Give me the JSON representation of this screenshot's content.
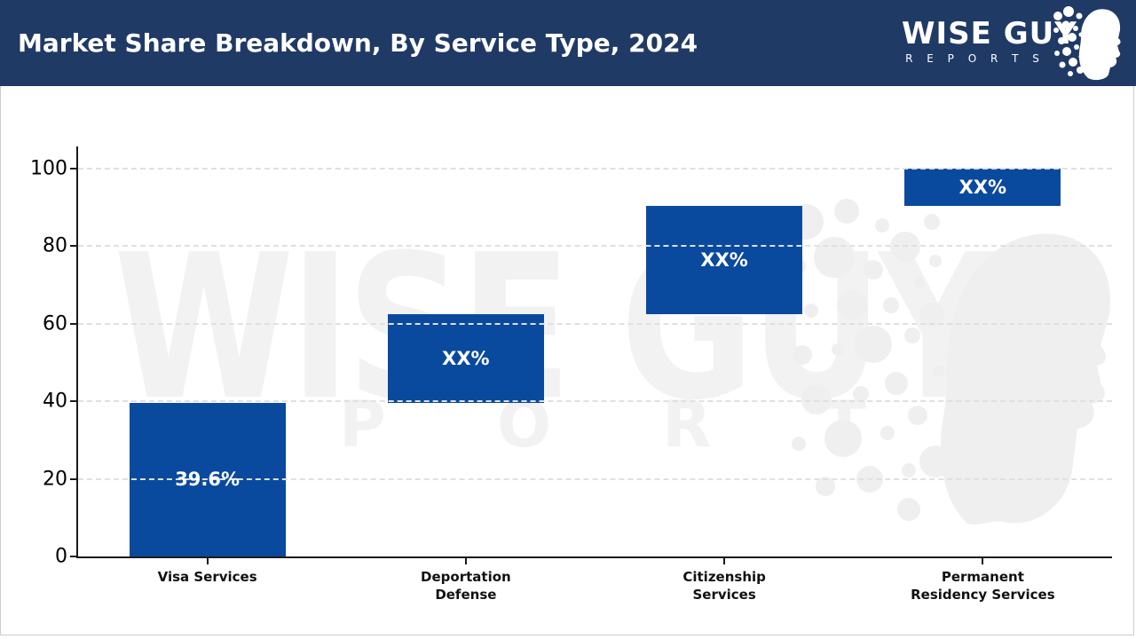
{
  "header": {
    "title": "Market Share Breakdown, By Service Type, 2024",
    "logo_line1": "WISE GUY",
    "logo_line2": "R E P O R T S"
  },
  "watermark": {
    "line1": "WISE GUY",
    "line2": "P O R T S"
  },
  "colors": {
    "header_bg": "#203a66",
    "bar": "#0a4a9e",
    "grid": "#e0e0e0",
    "axis": "#1a1a1a",
    "watermark": "#f2f2f2",
    "frame": "#cccccc"
  },
  "chart_data": {
    "type": "bar",
    "subtype": "floating-waterfall",
    "title": "Market Share Breakdown, By Service Type, 2024",
    "categories": [
      "Visa Services",
      "Deportation Defense",
      "Citizenship Services",
      "Permanent Residency Services"
    ],
    "category_lines": [
      [
        "Visa Services"
      ],
      [
        "Deportation",
        "Defense"
      ],
      [
        "Citizenship",
        "Services"
      ],
      [
        "Permanent",
        "Residency Services"
      ]
    ],
    "segments": [
      {
        "category": "Visa Services",
        "start": 0,
        "end": 39.6,
        "label": "39.6%"
      },
      {
        "category": "Deportation Defense",
        "start": 39.6,
        "end": 62.5,
        "label": "XX%"
      },
      {
        "category": "Citizenship Services",
        "start": 62.5,
        "end": 90.5,
        "label": "XX%"
      },
      {
        "category": "Permanent Residency Services",
        "start": 90.5,
        "end": 100,
        "label": "XX%"
      }
    ],
    "xlabel": "",
    "ylabel": "",
    "ylim": [
      0,
      100
    ],
    "yticks": [
      0,
      20,
      40,
      60,
      80,
      100
    ],
    "grid": "dashed-horizontal",
    "legend": "none"
  }
}
